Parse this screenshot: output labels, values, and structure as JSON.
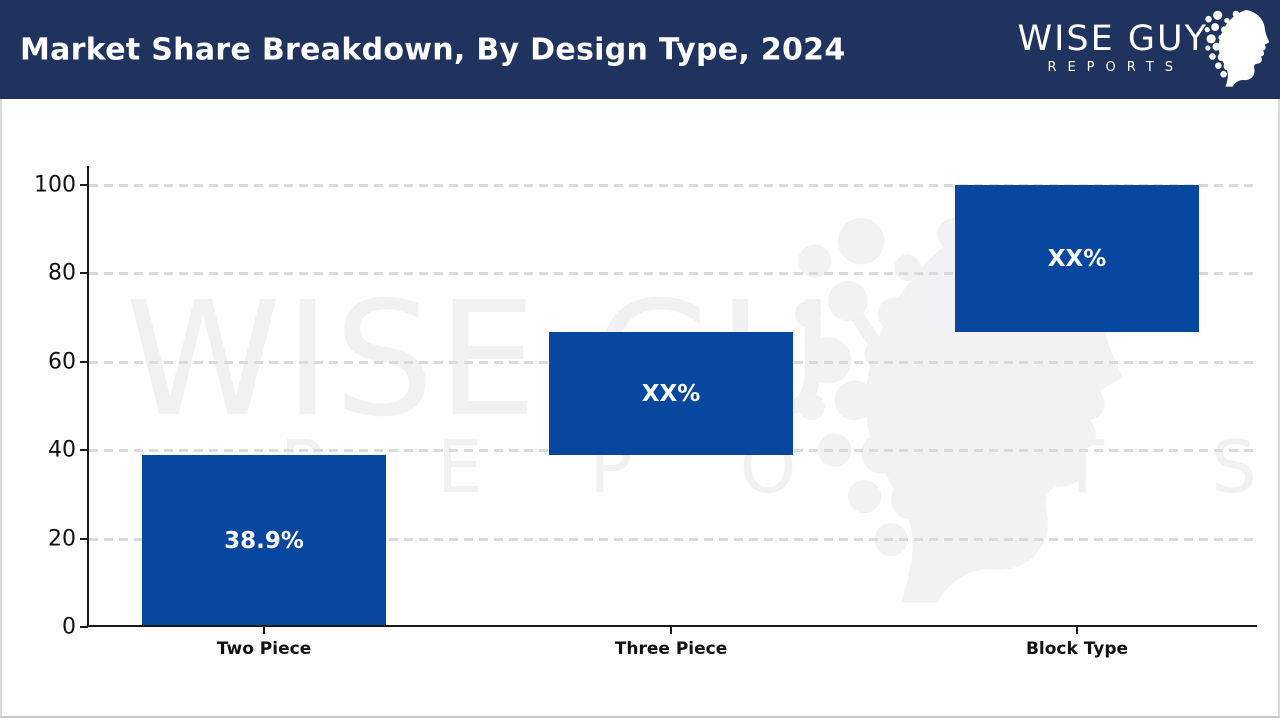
{
  "header": {
    "title": "Market Share Breakdown, By Design Type, 2024",
    "logo": {
      "name": "WISE GUY",
      "sub": "REPORTS"
    }
  },
  "watermark": {
    "line1": "WISE GUY",
    "line2": "R E P O R T S"
  },
  "chart_data": {
    "type": "bar",
    "variant": "waterfall",
    "title": "Market Share Breakdown, By Design Type, 2024",
    "categories": [
      "Two Piece",
      "Three Piece",
      "Block Type"
    ],
    "bars": [
      {
        "category": "Two Piece",
        "start": 0,
        "end": 38.9,
        "label": "38.9%"
      },
      {
        "category": "Three Piece",
        "start": 38.9,
        "end": 66.7,
        "label": "XX%"
      },
      {
        "category": "Block Type",
        "start": 66.7,
        "end": 100,
        "label": "XX%"
      }
    ],
    "xlabel": "",
    "ylabel": "",
    "ylim": [
      0,
      100
    ],
    "yticks": [
      0,
      20,
      40,
      60,
      80,
      100
    ],
    "grid": {
      "horizontal": true,
      "style": "dashed"
    },
    "legend": null,
    "bar_color": "#0847a0",
    "bar_label_color": "#ffffff"
  },
  "colors": {
    "header_bg": "#20335f",
    "bar": "#0847a0",
    "gridline": "#dadada",
    "axis": "#1a1a1a",
    "watermark": "#f1f1f4"
  }
}
